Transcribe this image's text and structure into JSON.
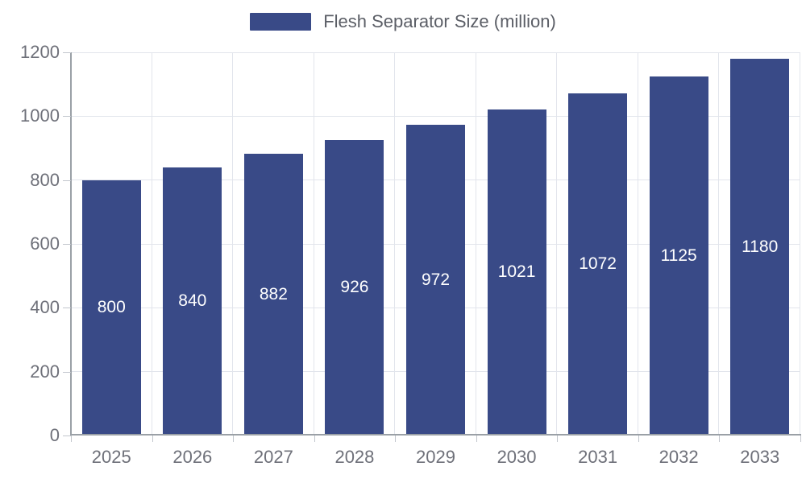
{
  "legend": {
    "label": "Flesh Separator Size (million)",
    "position": "top-center"
  },
  "chart_data": {
    "type": "bar",
    "title": "Flesh Separator Size (million)",
    "categories": [
      "2025",
      "2026",
      "2027",
      "2028",
      "2029",
      "2030",
      "2031",
      "2032",
      "2033"
    ],
    "series": [
      {
        "name": "Flesh Separator Size (million)",
        "values": [
          800,
          840,
          882,
          926,
          972,
          1021,
          1072,
          1125,
          1180
        ],
        "color": "#394a87"
      }
    ],
    "xlabel": "",
    "ylabel": "",
    "ylim": [
      0,
      1200
    ],
    "yticks": [
      0,
      200,
      400,
      600,
      800,
      1000,
      1200
    ],
    "grid": true,
    "legend_position": "top-center",
    "value_labels_position": "inside-center"
  },
  "colors": {
    "bar": "#394a87",
    "grid_line": "#e2e5ec",
    "axis_line": "#9aa0a6",
    "tick_mark": "#c2c6cd",
    "axis_text": "#6e7079",
    "legend_text": "#5b5e66",
    "value_text": "#ffffff",
    "background": "#ffffff"
  }
}
